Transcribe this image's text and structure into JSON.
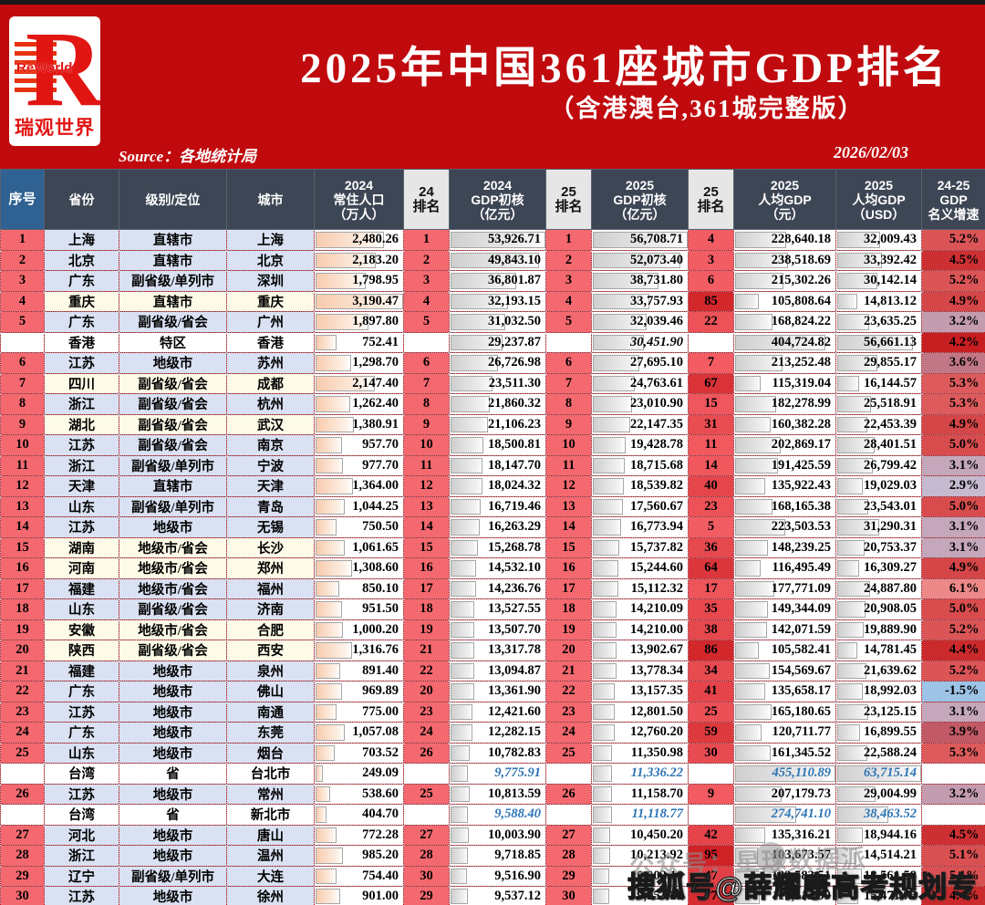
{
  "header": {
    "title": "2025年中国361座城市GDP排名",
    "subtitle": "（含港澳台,361城完整版）",
    "source": "Source：各地统计局",
    "date": "2026/02/03",
    "logo": {
      "brand_en": "ReWorld",
      "brand_cn": "瑞观世界",
      "letter": "R"
    }
  },
  "watermarks": {
    "gray": "公众号：星球数据派",
    "white": "搜狐号@薛耀康高考规划专家"
  },
  "colors": {
    "background_red": "#c00a0e",
    "header_navy": "#3d4654",
    "seq_header_blue": "#2f6292",
    "rank_header_gray": "#e6e6e6",
    "rank_red": "#f4696f",
    "row_lavender": "#d9e1f2",
    "row_cream": "#fdfbe7",
    "row_white": "#ffffff",
    "taiwan_blue": "#2e75b6",
    "growth_neg_blue": "#9dc3e6",
    "bar_peach": "#f8cbad",
    "bar_gray": "#cfcfcf"
  },
  "table": {
    "columns": [
      {
        "id": "seq",
        "label": "序号"
      },
      {
        "id": "province",
        "label": "省份"
      },
      {
        "id": "level",
        "label": "级别/定位"
      },
      {
        "id": "city",
        "label": "城市"
      },
      {
        "id": "pop",
        "label": "2024\n常住人口\n（万人）"
      },
      {
        "id": "rank24",
        "label": "24\n排名"
      },
      {
        "id": "gdp24",
        "label": "2024\nGDP初核\n（亿元）"
      },
      {
        "id": "rank25",
        "label": "25\n排名"
      },
      {
        "id": "gdp25",
        "label": "2025\nGDP初核\n（亿元）"
      },
      {
        "id": "rank_pc",
        "label": "25\n排名"
      },
      {
        "id": "pc_cny",
        "label": "2025\n人均GDP\n（元）"
      },
      {
        "id": "pc_usd",
        "label": "2025\n人均GDP\n（USD）"
      },
      {
        "id": "growth",
        "label": "24-25\nGDP\n名义增速"
      }
    ],
    "bar_max": {
      "pop": 3200,
      "gdp24": 53926.71,
      "gdp25": 56708.71,
      "pc_cny": 455110.89,
      "pc_usd": 63715.14
    },
    "rows": [
      {
        "seq": "1",
        "province": "上海",
        "level": "直辖市",
        "city": "上海",
        "pop": "2,480.26",
        "rank24": "1",
        "gdp24": "53,926.71",
        "rank25": "1",
        "gdp25": "56,708.71",
        "rank_pc": "4",
        "pc_cny": "228,640.18",
        "pc_usd": "32,009.43",
        "growth": "5.2%",
        "bg": "lavender",
        "special": ""
      },
      {
        "seq": "2",
        "province": "北京",
        "level": "直辖市",
        "city": "北京",
        "pop": "2,183.20",
        "rank24": "2",
        "gdp24": "49,843.10",
        "rank25": "2",
        "gdp25": "52,073.40",
        "rank_pc": "3",
        "pc_cny": "238,518.69",
        "pc_usd": "33,392.42",
        "growth": "4.5%",
        "bg": "lavender",
        "special": ""
      },
      {
        "seq": "3",
        "province": "广东",
        "level": "副省级/单列市",
        "city": "深圳",
        "pop": "1,798.95",
        "rank24": "3",
        "gdp24": "36,801.87",
        "rank25": "3",
        "gdp25": "38,731.80",
        "rank_pc": "6",
        "pc_cny": "215,302.26",
        "pc_usd": "30,142.14",
        "growth": "5.2%",
        "bg": "lavender",
        "special": ""
      },
      {
        "seq": "4",
        "province": "重庆",
        "level": "直辖市",
        "city": "重庆",
        "pop": "3,190.47",
        "rank24": "4",
        "gdp24": "32,193.15",
        "rank25": "4",
        "gdp25": "33,757.93",
        "rank_pc": "85",
        "pc_cny": "105,808.64",
        "pc_usd": "14,813.12",
        "growth": "4.9%",
        "bg": "cream",
        "special": ""
      },
      {
        "seq": "5",
        "province": "广东",
        "level": "副省级/省会",
        "city": "广州",
        "pop": "1,897.80",
        "rank24": "5",
        "gdp24": "31,032.50",
        "rank25": "5",
        "gdp25": "32,039.46",
        "rank_pc": "22",
        "pc_cny": "168,824.22",
        "pc_usd": "23,635.25",
        "growth": "3.2%",
        "bg": "lavender",
        "special": ""
      },
      {
        "seq": "",
        "province": "香港",
        "level": "特区",
        "city": "香港",
        "pop": "752.41",
        "rank24": "",
        "gdp24": "29,237.87",
        "rank25": "",
        "gdp25": "30,451.90",
        "rank_pc": "",
        "pc_cny": "404,724.82",
        "pc_usd": "56,661.13",
        "growth": "4.2%",
        "bg": "white",
        "special": "hk"
      },
      {
        "seq": "6",
        "province": "江苏",
        "level": "地级市",
        "city": "苏州",
        "pop": "1,298.70",
        "rank24": "6",
        "gdp24": "26,726.98",
        "rank25": "6",
        "gdp25": "27,695.10",
        "rank_pc": "7",
        "pc_cny": "213,252.48",
        "pc_usd": "29,855.17",
        "growth": "3.6%",
        "bg": "lavender",
        "special": ""
      },
      {
        "seq": "7",
        "province": "四川",
        "level": "副省级/省会",
        "city": "成都",
        "pop": "2,147.40",
        "rank24": "7",
        "gdp24": "23,511.30",
        "rank25": "7",
        "gdp25": "24,763.61",
        "rank_pc": "67",
        "pc_cny": "115,319.04",
        "pc_usd": "16,144.57",
        "growth": "5.3%",
        "bg": "cream",
        "special": ""
      },
      {
        "seq": "8",
        "province": "浙江",
        "level": "副省级/省会",
        "city": "杭州",
        "pop": "1,262.40",
        "rank24": "8",
        "gdp24": "21,860.32",
        "rank25": "8",
        "gdp25": "23,010.90",
        "rank_pc": "15",
        "pc_cny": "182,278.99",
        "pc_usd": "25,518.91",
        "growth": "5.3%",
        "bg": "lavender",
        "special": ""
      },
      {
        "seq": "9",
        "province": "湖北",
        "level": "副省级/省会",
        "city": "武汉",
        "pop": "1,380.91",
        "rank24": "9",
        "gdp24": "21,106.23",
        "rank25": "9",
        "gdp25": "22,147.35",
        "rank_pc": "31",
        "pc_cny": "160,382.28",
        "pc_usd": "22,453.39",
        "growth": "4.9%",
        "bg": "cream",
        "special": ""
      },
      {
        "seq": "10",
        "province": "江苏",
        "level": "副省级/省会",
        "city": "南京",
        "pop": "957.70",
        "rank24": "10",
        "gdp24": "18,500.81",
        "rank25": "10",
        "gdp25": "19,428.78",
        "rank_pc": "11",
        "pc_cny": "202,869.17",
        "pc_usd": "28,401.51",
        "growth": "5.0%",
        "bg": "lavender",
        "special": ""
      },
      {
        "seq": "11",
        "province": "浙江",
        "level": "副省级/单列市",
        "city": "宁波",
        "pop": "977.70",
        "rank24": "11",
        "gdp24": "18,147.70",
        "rank25": "11",
        "gdp25": "18,715.68",
        "rank_pc": "14",
        "pc_cny": "191,425.59",
        "pc_usd": "26,799.42",
        "growth": "3.1%",
        "bg": "lavender",
        "special": ""
      },
      {
        "seq": "12",
        "province": "天津",
        "level": "直辖市",
        "city": "天津",
        "pop": "1,364.00",
        "rank24": "12",
        "gdp24": "18,024.32",
        "rank25": "12",
        "gdp25": "18,539.82",
        "rank_pc": "40",
        "pc_cny": "135,922.43",
        "pc_usd": "19,029.03",
        "growth": "2.9%",
        "bg": "lavender",
        "special": ""
      },
      {
        "seq": "13",
        "province": "山东",
        "level": "副省级/单列市",
        "city": "青岛",
        "pop": "1,044.25",
        "rank24": "13",
        "gdp24": "16,719.46",
        "rank25": "13",
        "gdp25": "17,560.67",
        "rank_pc": "23",
        "pc_cny": "168,165.38",
        "pc_usd": "23,543.01",
        "growth": "5.0%",
        "bg": "lavender",
        "special": ""
      },
      {
        "seq": "14",
        "province": "江苏",
        "level": "地级市",
        "city": "无锡",
        "pop": "750.50",
        "rank24": "14",
        "gdp24": "16,263.29",
        "rank25": "14",
        "gdp25": "16,773.94",
        "rank_pc": "5",
        "pc_cny": "223,503.53",
        "pc_usd": "31,290.31",
        "growth": "3.1%",
        "bg": "lavender",
        "special": ""
      },
      {
        "seq": "15",
        "province": "湖南",
        "level": "地级市/省会",
        "city": "长沙",
        "pop": "1,061.65",
        "rank24": "15",
        "gdp24": "15,268.78",
        "rank25": "15",
        "gdp25": "15,737.82",
        "rank_pc": "36",
        "pc_cny": "148,239.25",
        "pc_usd": "20,753.37",
        "growth": "3.1%",
        "bg": "cream",
        "special": ""
      },
      {
        "seq": "16",
        "province": "河南",
        "level": "地级市/省会",
        "city": "郑州",
        "pop": "1,308.60",
        "rank24": "16",
        "gdp24": "14,532.10",
        "rank25": "16",
        "gdp25": "15,244.60",
        "rank_pc": "64",
        "pc_cny": "116,495.49",
        "pc_usd": "16,309.27",
        "growth": "4.9%",
        "bg": "cream",
        "special": ""
      },
      {
        "seq": "17",
        "province": "福建",
        "level": "地级市/省会",
        "city": "福州",
        "pop": "850.10",
        "rank24": "17",
        "gdp24": "14,236.76",
        "rank25": "17",
        "gdp25": "15,112.32",
        "rank_pc": "17",
        "pc_cny": "177,771.09",
        "pc_usd": "24,887.80",
        "growth": "6.1%",
        "bg": "lavender",
        "special": ""
      },
      {
        "seq": "18",
        "province": "山东",
        "level": "副省级/省会",
        "city": "济南",
        "pop": "951.50",
        "rank24": "18",
        "gdp24": "13,527.55",
        "rank25": "18",
        "gdp25": "14,210.09",
        "rank_pc": "35",
        "pc_cny": "149,344.09",
        "pc_usd": "20,908.05",
        "growth": "5.0%",
        "bg": "lavender",
        "special": ""
      },
      {
        "seq": "19",
        "province": "安徽",
        "level": "地级市/省会",
        "city": "合肥",
        "pop": "1,000.20",
        "rank24": "19",
        "gdp24": "13,507.70",
        "rank25": "19",
        "gdp25": "14,210.00",
        "rank_pc": "38",
        "pc_cny": "142,071.59",
        "pc_usd": "19,889.90",
        "growth": "5.2%",
        "bg": "cream",
        "special": ""
      },
      {
        "seq": "20",
        "province": "陕西",
        "level": "副省级/省会",
        "city": "西安",
        "pop": "1,316.76",
        "rank24": "21",
        "gdp24": "13,317.78",
        "rank25": "20",
        "gdp25": "13,902.67",
        "rank_pc": "86",
        "pc_cny": "105,582.41",
        "pc_usd": "14,781.45",
        "growth": "4.4%",
        "bg": "cream",
        "special": ""
      },
      {
        "seq": "21",
        "province": "福建",
        "level": "地级市",
        "city": "泉州",
        "pop": "891.40",
        "rank24": "22",
        "gdp24": "13,094.87",
        "rank25": "21",
        "gdp25": "13,778.34",
        "rank_pc": "34",
        "pc_cny": "154,569.67",
        "pc_usd": "21,639.62",
        "growth": "5.2%",
        "bg": "lavender",
        "special": ""
      },
      {
        "seq": "22",
        "province": "广东",
        "level": "地级市",
        "city": "佛山",
        "pop": "969.89",
        "rank24": "20",
        "gdp24": "13,361.90",
        "rank25": "22",
        "gdp25": "13,157.35",
        "rank_pc": "41",
        "pc_cny": "135,658.17",
        "pc_usd": "18,992.03",
        "growth": "-1.5%",
        "bg": "lavender",
        "special": ""
      },
      {
        "seq": "23",
        "province": "江苏",
        "level": "地级市",
        "city": "南通",
        "pop": "775.00",
        "rank24": "23",
        "gdp24": "12,421.60",
        "rank25": "23",
        "gdp25": "12,801.50",
        "rank_pc": "25",
        "pc_cny": "165,180.65",
        "pc_usd": "23,125.15",
        "growth": "3.1%",
        "bg": "lavender",
        "special": ""
      },
      {
        "seq": "24",
        "province": "广东",
        "level": "地级市",
        "city": "东莞",
        "pop": "1,057.08",
        "rank24": "24",
        "gdp24": "12,282.15",
        "rank25": "24",
        "gdp25": "12,760.20",
        "rank_pc": "59",
        "pc_cny": "120,711.77",
        "pc_usd": "16,899.55",
        "growth": "3.9%",
        "bg": "lavender",
        "special": ""
      },
      {
        "seq": "25",
        "province": "山东",
        "level": "地级市",
        "city": "烟台",
        "pop": "703.52",
        "rank24": "26",
        "gdp24": "10,782.83",
        "rank25": "25",
        "gdp25": "11,350.98",
        "rank_pc": "30",
        "pc_cny": "161,345.52",
        "pc_usd": "22,588.24",
        "growth": "5.3%",
        "bg": "lavender",
        "special": ""
      },
      {
        "seq": "",
        "province": "台湾",
        "level": "省",
        "city": "台北市",
        "pop": "249.09",
        "rank24": "",
        "gdp24": "9,775.91",
        "rank25": "",
        "gdp25": "11,336.22",
        "rank_pc": "",
        "pc_cny": "455,110.89",
        "pc_usd": "63,715.14",
        "growth": "",
        "bg": "white",
        "special": "tw"
      },
      {
        "seq": "26",
        "province": "江苏",
        "level": "地级市",
        "city": "常州",
        "pop": "538.60",
        "rank24": "25",
        "gdp24": "10,813.59",
        "rank25": "26",
        "gdp25": "11,158.70",
        "rank_pc": "9",
        "pc_cny": "207,179.73",
        "pc_usd": "29,004.99",
        "growth": "3.2%",
        "bg": "lavender",
        "special": ""
      },
      {
        "seq": "",
        "province": "台湾",
        "level": "省",
        "city": "新北市",
        "pop": "404.70",
        "rank24": "",
        "gdp24": "9,588.40",
        "rank25": "",
        "gdp25": "11,118.77",
        "rank_pc": "",
        "pc_cny": "274,741.10",
        "pc_usd": "38,463.52",
        "growth": "",
        "bg": "white",
        "special": "tw"
      },
      {
        "seq": "27",
        "province": "河北",
        "level": "地级市",
        "city": "唐山",
        "pop": "772.28",
        "rank24": "27",
        "gdp24": "10,003.90",
        "rank25": "27",
        "gdp25": "10,450.20",
        "rank_pc": "42",
        "pc_cny": "135,316.21",
        "pc_usd": "18,944.16",
        "growth": "4.5%",
        "bg": "lavender",
        "special": ""
      },
      {
        "seq": "28",
        "province": "浙江",
        "level": "地级市",
        "city": "温州",
        "pop": "985.20",
        "rank24": "28",
        "gdp24": "9,718.85",
        "rank25": "28",
        "gdp25": "10,213.92",
        "rank_pc": "95",
        "pc_cny": "103,673.57",
        "pc_usd": "14,514.21",
        "growth": "5.1%",
        "bg": "lavender",
        "special": ""
      },
      {
        "seq": "29",
        "province": "辽宁",
        "level": "副省级/单列市",
        "city": "大连",
        "pop": "754.40",
        "rank24": "30",
        "gdp24": "9,516.90",
        "rank25": "29",
        "gdp25": "10,002.10",
        "rank_pc": "47",
        "pc_cny": "132,583.51",
        "pc_usd": "18,561.58",
        "growth": "5.1%",
        "bg": "lavender",
        "special": ""
      },
      {
        "seq": "30",
        "province": "江苏",
        "level": "地级市",
        "city": "徐州",
        "pop": "901.00",
        "rank24": "29",
        "gdp24": "9,537.12",
        "rank25": "30",
        "gdp25": "9,957.22",
        "rank_pc": "77",
        "pc_cny": "110,512.99",
        "pc_usd": "15,471.75",
        "growth": "4.4%",
        "bg": "lavender",
        "special": ""
      }
    ]
  }
}
